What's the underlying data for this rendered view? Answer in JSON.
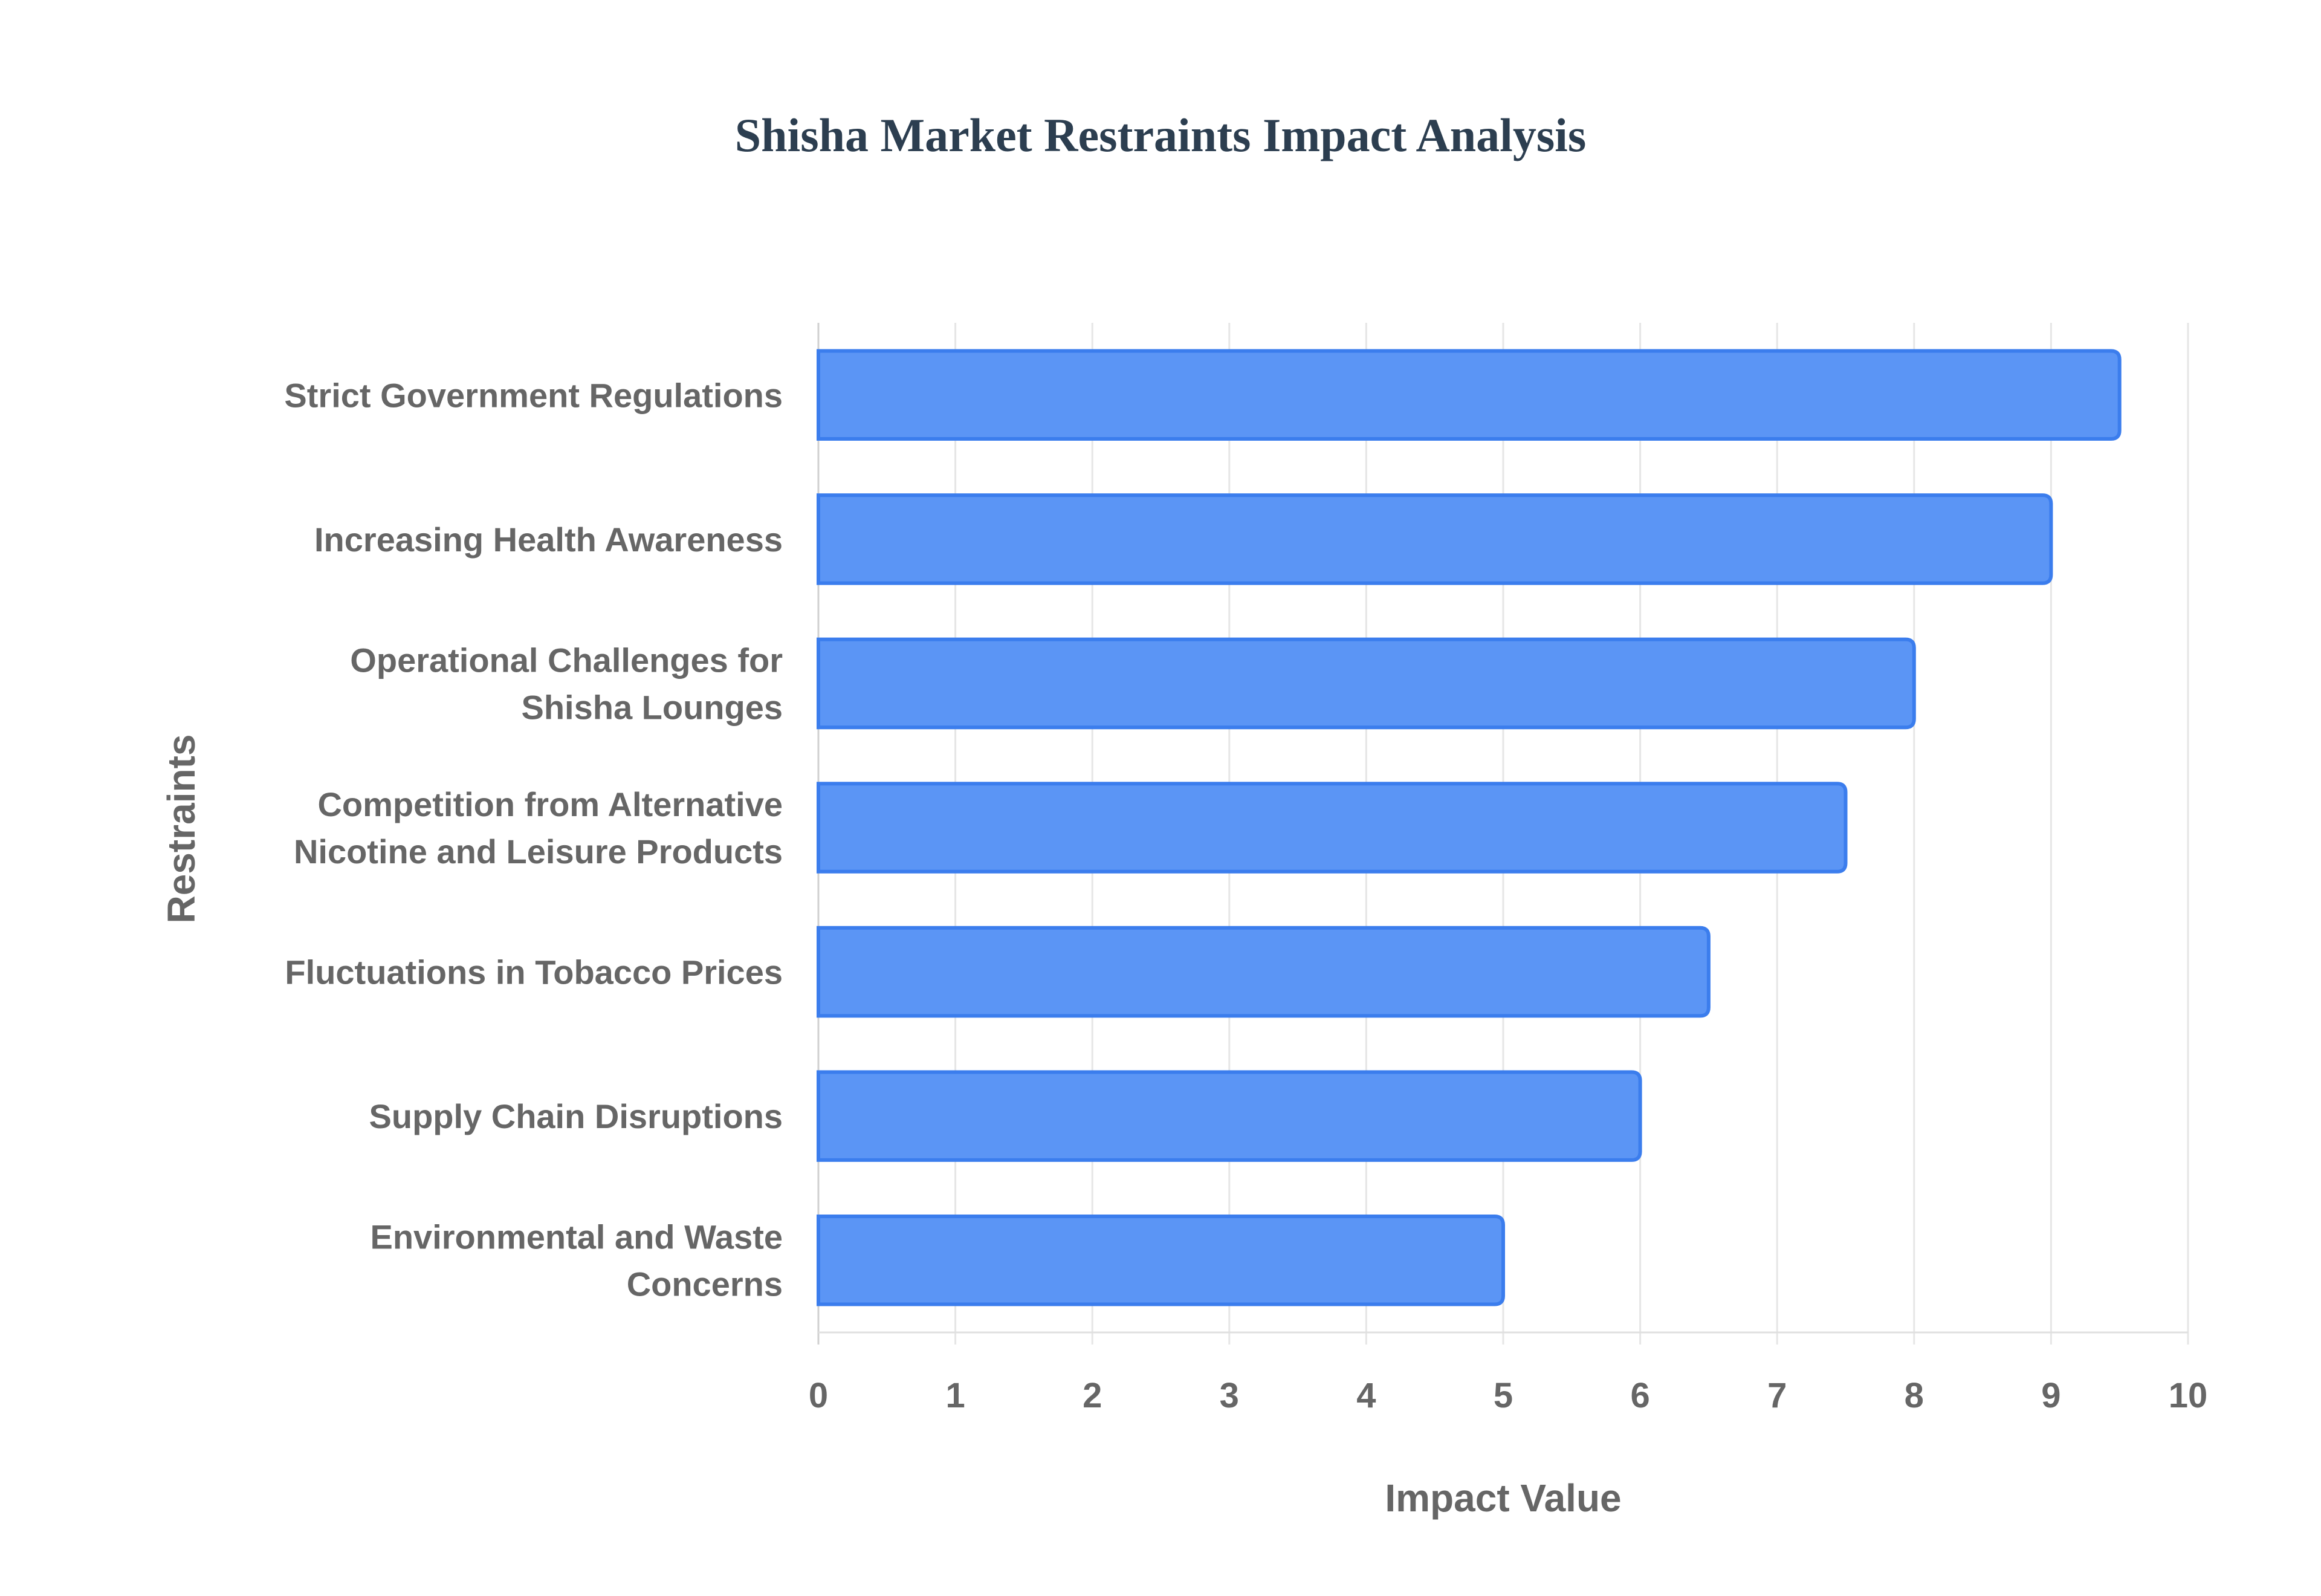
{
  "chart_data": {
    "type": "bar",
    "orientation": "horizontal",
    "title": "Shisha Market Restraints Impact Analysis",
    "xlabel": "Impact Value",
    "ylabel": "Restraints",
    "xlim": [
      0,
      10
    ],
    "xticks": [
      "0",
      "1",
      "2",
      "3",
      "4",
      "5",
      "6",
      "7",
      "8",
      "9",
      "10"
    ],
    "grid": true,
    "categories": [
      [
        "Strict Government Regulations"
      ],
      [
        "Increasing Health Awareness"
      ],
      [
        "Operational Challenges for",
        "Shisha Lounges"
      ],
      [
        "Competition from Alternative",
        "Nicotine and Leisure Products"
      ],
      [
        "Fluctuations in Tobacco Prices"
      ],
      [
        "Supply Chain Disruptions"
      ],
      [
        "Environmental and Waste",
        "Concerns"
      ]
    ],
    "values": [
      9.5,
      9,
      8,
      7.5,
      6.5,
      6,
      5
    ],
    "colors": {
      "bar_fill": "#5b95f5",
      "bar_border": "#3b7ded",
      "grid": "#e6e6e6",
      "text": "#666666",
      "title": "#2c3e50"
    }
  }
}
